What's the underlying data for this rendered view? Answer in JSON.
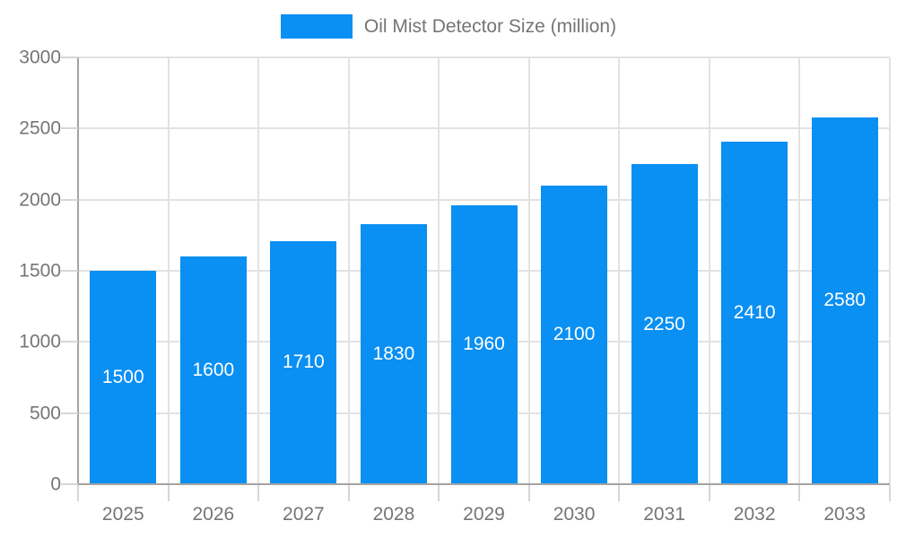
{
  "chart_data": {
    "type": "bar",
    "title": "",
    "legend": {
      "position": "top",
      "label": "Oil Mist Detector Size (million)"
    },
    "series_name": "Oil Mist Detector Size (million)",
    "categories": [
      "2025",
      "2026",
      "2027",
      "2028",
      "2029",
      "2030",
      "2031",
      "2032",
      "2033"
    ],
    "values": [
      1500,
      1600,
      1710,
      1830,
      1960,
      2100,
      2250,
      2410,
      2580
    ],
    "xlabel": "",
    "ylabel": "",
    "ylim": [
      0,
      3000
    ],
    "yticks": [
      0,
      500,
      1000,
      1500,
      2000,
      2500,
      3000
    ],
    "grid": true,
    "bar_value_labels": true
  },
  "colors": {
    "bar": "#0a8ff2",
    "bar_label": "#ffffff",
    "axis_line": "#a3a3a3",
    "gridline": "#e2e2e2",
    "tick": "#d6d6d6",
    "label_text": "#757575",
    "background": "#ffffff"
  }
}
